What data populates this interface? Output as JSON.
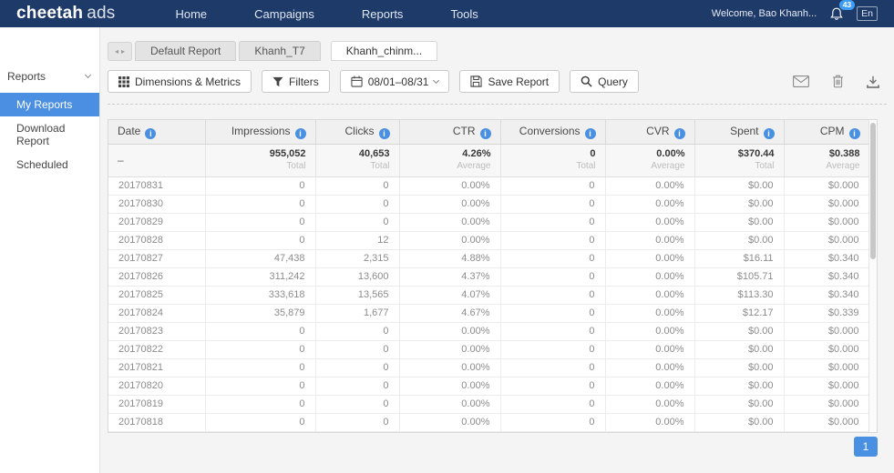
{
  "topnav": {
    "brand_bold": "cheetah",
    "brand_light": "ads",
    "items": [
      "Home",
      "Campaigns",
      "Reports",
      "Tools"
    ],
    "welcome": "Welcome,  Bao Khanh...",
    "notification_count": "43",
    "language": "En"
  },
  "sidebar": {
    "group": {
      "label": "Reports"
    },
    "items": [
      {
        "label": "My Reports",
        "active": true
      },
      {
        "label": "Download Report",
        "active": false
      },
      {
        "label": "Scheduled",
        "active": false
      }
    ]
  },
  "tabs": {
    "items": [
      {
        "label": "Default Report",
        "active": false
      },
      {
        "label": "Khanh_T7",
        "active": false
      },
      {
        "label": "Khanh_chinm...",
        "active": true
      }
    ]
  },
  "toolbar": {
    "dimensions_metrics": "Dimensions & Metrics",
    "filters": "Filters",
    "date_range": "08/01–08/31",
    "save_report": "Save Report",
    "query": "Query"
  },
  "table": {
    "columns": [
      "Date",
      "Impressions",
      "Clicks",
      "CTR",
      "Conversions",
      "CVR",
      "Spent",
      "CPM"
    ],
    "totals": {
      "date": "–",
      "cells": [
        {
          "value": "955,052",
          "sub": "Total"
        },
        {
          "value": "40,653",
          "sub": "Total"
        },
        {
          "value": "4.26%",
          "sub": "Average"
        },
        {
          "value": "0",
          "sub": "Total"
        },
        {
          "value": "0.00%",
          "sub": "Average"
        },
        {
          "value": "$370.44",
          "sub": "Total"
        },
        {
          "value": "$0.388",
          "sub": "Average"
        }
      ]
    },
    "rows": [
      [
        "20170831",
        "0",
        "0",
        "0.00%",
        "0",
        "0.00%",
        "$0.00",
        "$0.000"
      ],
      [
        "20170830",
        "0",
        "0",
        "0.00%",
        "0",
        "0.00%",
        "$0.00",
        "$0.000"
      ],
      [
        "20170829",
        "0",
        "0",
        "0.00%",
        "0",
        "0.00%",
        "$0.00",
        "$0.000"
      ],
      [
        "20170828",
        "0",
        "12",
        "0.00%",
        "0",
        "0.00%",
        "$0.00",
        "$0.000"
      ],
      [
        "20170827",
        "47,438",
        "2,315",
        "4.88%",
        "0",
        "0.00%",
        "$16.11",
        "$0.340"
      ],
      [
        "20170826",
        "311,242",
        "13,600",
        "4.37%",
        "0",
        "0.00%",
        "$105.71",
        "$0.340"
      ],
      [
        "20170825",
        "333,618",
        "13,565",
        "4.07%",
        "0",
        "0.00%",
        "$113.30",
        "$0.340"
      ],
      [
        "20170824",
        "35,879",
        "1,677",
        "4.67%",
        "0",
        "0.00%",
        "$12.17",
        "$0.339"
      ],
      [
        "20170823",
        "0",
        "0",
        "0.00%",
        "0",
        "0.00%",
        "$0.00",
        "$0.000"
      ],
      [
        "20170822",
        "0",
        "0",
        "0.00%",
        "0",
        "0.00%",
        "$0.00",
        "$0.000"
      ],
      [
        "20170821",
        "0",
        "0",
        "0.00%",
        "0",
        "0.00%",
        "$0.00",
        "$0.000"
      ],
      [
        "20170820",
        "0",
        "0",
        "0.00%",
        "0",
        "0.00%",
        "$0.00",
        "$0.000"
      ],
      [
        "20170819",
        "0",
        "0",
        "0.00%",
        "0",
        "0.00%",
        "$0.00",
        "$0.000"
      ],
      [
        "20170818",
        "0",
        "0",
        "0.00%",
        "0",
        "0.00%",
        "$0.00",
        "$0.000"
      ]
    ]
  },
  "pagination": {
    "current": "1"
  },
  "colors": {
    "topnav_bg": "#1e3a69",
    "accent_blue": "#4a90e2",
    "sidebar_active": "#4a8fe2",
    "badge_blue": "#3d9df6"
  }
}
